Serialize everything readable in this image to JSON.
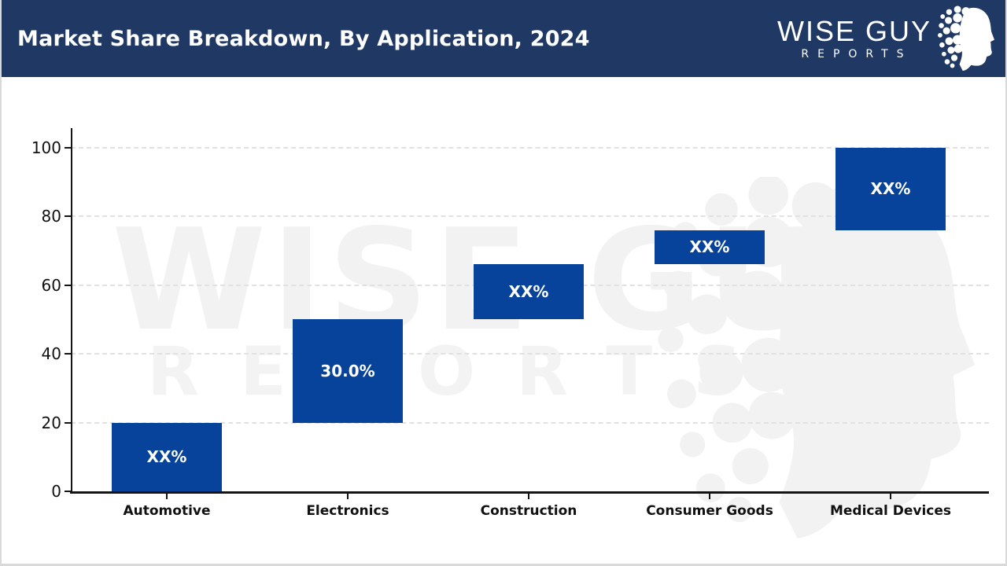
{
  "header": {
    "title": "Market Share Breakdown, By Application, 2024",
    "logo": {
      "line1": "WISE GUY",
      "line2": "REPORTS",
      "icon": "dotted-head-profile-icon"
    },
    "bg_color": "#1f3864",
    "text_color": "#ffffff"
  },
  "watermark": {
    "line1": "WISE GUY",
    "line2": "REPORTS",
    "head_graphic": "dotted-head-profile-watermark"
  },
  "chart_data": {
    "type": "bar",
    "subtype": "waterfall-floating-bars",
    "title": "Market Share Breakdown, By Application, 2024",
    "xlabel": "",
    "ylabel": "",
    "ylim": [
      0,
      106
    ],
    "yticks": [
      0,
      20,
      40,
      60,
      80,
      100
    ],
    "grid": "horizontal-dashed",
    "grid_color": "#e1e1e1",
    "bar_color": "#07439b",
    "bar_label_color": "#ffffff",
    "categories": [
      "Automotive",
      "Electronics",
      "Construction",
      "Consumer Goods",
      "Medical Devices"
    ],
    "bars": [
      {
        "category": "Automotive",
        "start": 0,
        "end": 20,
        "value": 20,
        "label": "XX%"
      },
      {
        "category": "Electronics",
        "start": 20,
        "end": 50,
        "value": 30,
        "label": "30.0%"
      },
      {
        "category": "Construction",
        "start": 50,
        "end": 66,
        "value": 16,
        "label": "XX%"
      },
      {
        "category": "Consumer Goods",
        "start": 66,
        "end": 76,
        "value": 10,
        "label": "XX%"
      },
      {
        "category": "Medical Devices",
        "start": 76,
        "end": 100,
        "value": 24,
        "label": "XX%"
      }
    ]
  }
}
